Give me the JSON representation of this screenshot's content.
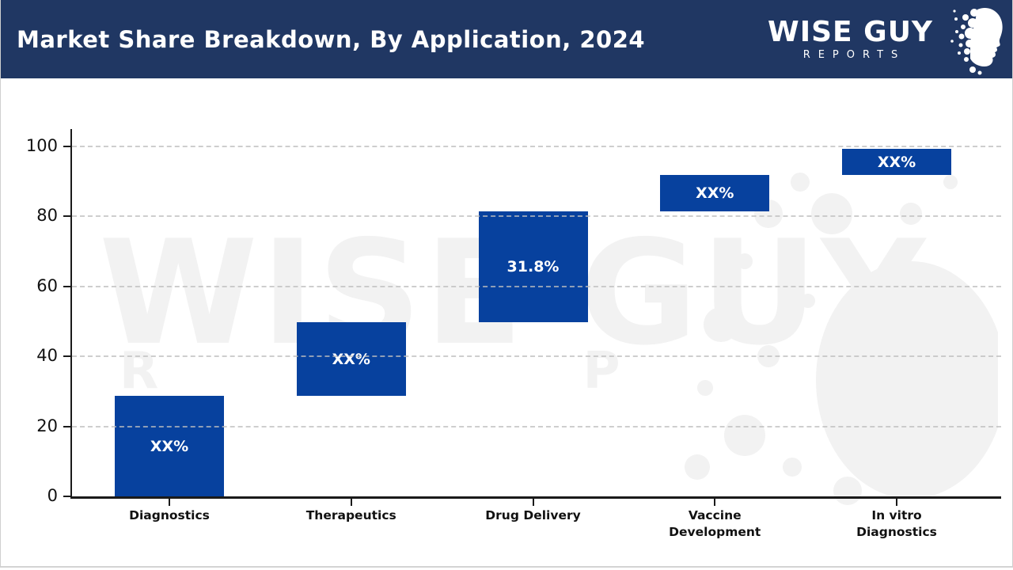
{
  "header": {
    "title": "Market Share Breakdown, By Application, 2024",
    "logo": {
      "line1": "WISE GUY",
      "line2": "REPORTS"
    }
  },
  "watermark": {
    "line1": "WISE GUY",
    "line2": "R E P O R T S"
  },
  "chart_data": {
    "type": "bar",
    "subtype": "waterfall",
    "title": "Market Share Breakdown, By Application, 2024",
    "categories": [
      "Diagnostics",
      "Therapeutics",
      "Drug Delivery",
      "Vaccine\nDevelopment",
      "In vitro\nDiagnostics"
    ],
    "segments": [
      {
        "category": "Diagnostics",
        "label": "XX%",
        "start": 0,
        "end": 28.7
      },
      {
        "category": "Therapeutics",
        "label": "XX%",
        "start": 28.7,
        "end": 49.7
      },
      {
        "category": "Drug Delivery",
        "label": "31.8%",
        "start": 49.7,
        "end": 81.5
      },
      {
        "category": "Vaccine Development",
        "label": "XX%",
        "start": 81.5,
        "end": 91.8
      },
      {
        "category": "In vitro Diagnostics",
        "label": "XX%",
        "start": 91.8,
        "end": 99.3
      }
    ],
    "yticks": [
      0,
      20,
      40,
      60,
      80,
      100
    ],
    "ylim": [
      0,
      105
    ],
    "xlabel": "",
    "ylabel": "",
    "grid": "horizontal-dashed",
    "legend": "none",
    "colors": {
      "bar": "#07419E",
      "header_background": "#203763",
      "gridline": "#d9d9d9",
      "axis": "#1a1a1a",
      "watermark": "#f2f2f2",
      "bar_label_text": "#ffffff"
    }
  }
}
